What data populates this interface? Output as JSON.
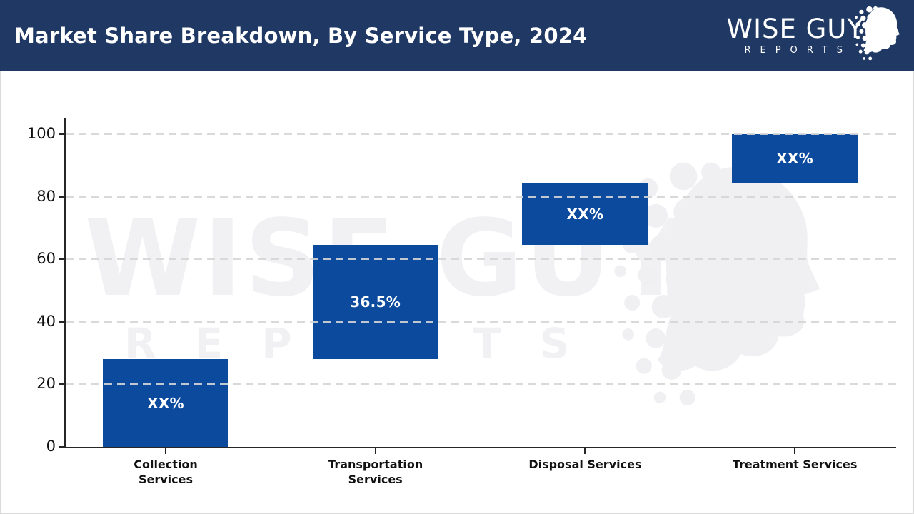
{
  "header": {
    "title": "Market Share Breakdown, By Service Type, 2024",
    "logo": {
      "line1": "WISE GUY",
      "line2": "REPORTS"
    },
    "bg_color": "#1f3864"
  },
  "watermark": {
    "line1": "WISE GUY",
    "line2": "REPORTS"
  },
  "chart_data": {
    "type": "bar",
    "subtype": "waterfall",
    "title": "Market Share Breakdown, By Service Type, 2024",
    "categories": [
      "Collection Services",
      "Transportation Services",
      "Disposal Services",
      "Treatment Services"
    ],
    "category_label_lines": [
      [
        "Collection",
        "Services"
      ],
      [
        "Transportation",
        "Services"
      ],
      [
        "Disposal Services"
      ],
      [
        "Treatment Services"
      ]
    ],
    "bars": [
      {
        "category": "Collection Services",
        "start": 0,
        "end": 28,
        "label": "XX%"
      },
      {
        "category": "Transportation Services",
        "start": 28,
        "end": 64.5,
        "label": "36.5%"
      },
      {
        "category": "Disposal Services",
        "start": 64.5,
        "end": 84.5,
        "label": "XX%"
      },
      {
        "category": "Treatment Services",
        "start": 84.5,
        "end": 100,
        "label": "XX%"
      }
    ],
    "xlabel": "",
    "ylabel": "",
    "ylim": [
      0,
      105
    ],
    "yticks": [
      0,
      20,
      40,
      60,
      80,
      100
    ],
    "grid": "horizontal-dashed",
    "legend": "none",
    "bar_color": "#0c4a9e"
  }
}
